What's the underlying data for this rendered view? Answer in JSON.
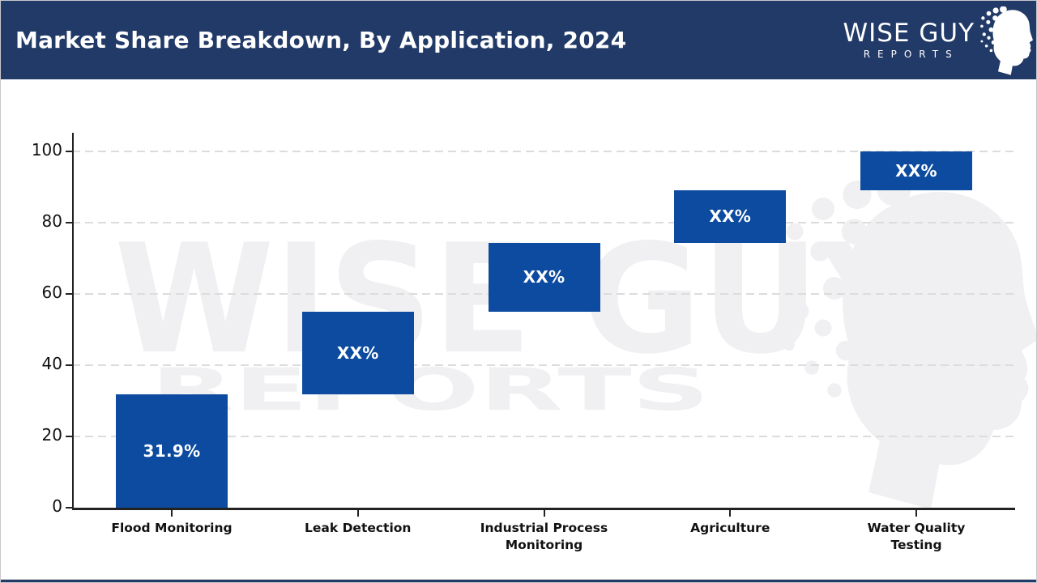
{
  "header": {
    "logo": {
      "line1": "WISE GUY",
      "line2": "REPORTS"
    }
  },
  "watermark": {
    "line1": "WISE GUY",
    "line2": "REPORTS"
  },
  "colors": {
    "header_bg": "#223a68",
    "bar_blue": "#0c4ba0",
    "gridline": "#dcdcdc",
    "axis": "#222222",
    "watermark_gray": "#f0f0f2"
  },
  "chart_data": {
    "type": "bar",
    "subtype": "waterfall",
    "title": "Market Share Breakdown, By Application, 2024",
    "categories": [
      "Flood Monitoring",
      "Leak Detection",
      "Industrial Process\nMonitoring",
      "Agriculture",
      "Water Quality\nTesting"
    ],
    "segments": [
      {
        "category": "Flood Monitoring",
        "start": 0,
        "end": 31.9,
        "label": "31.9%"
      },
      {
        "category": "Leak Detection",
        "start": 31.9,
        "end": 55.1,
        "label": "XX%"
      },
      {
        "category": "Industrial Process Monitoring",
        "start": 55.1,
        "end": 74.3,
        "label": "XX%"
      },
      {
        "category": "Agriculture",
        "start": 74.3,
        "end": 89.2,
        "label": "XX%"
      },
      {
        "category": "Water Quality Testing",
        "start": 89.2,
        "end": 100,
        "label": "XX%"
      }
    ],
    "yticks": [
      0,
      20,
      40,
      60,
      80,
      100
    ],
    "ylim": [
      0,
      105
    ],
    "xlabel": "",
    "ylabel": "",
    "grid": "horizontal-dashed",
    "legend": null
  }
}
